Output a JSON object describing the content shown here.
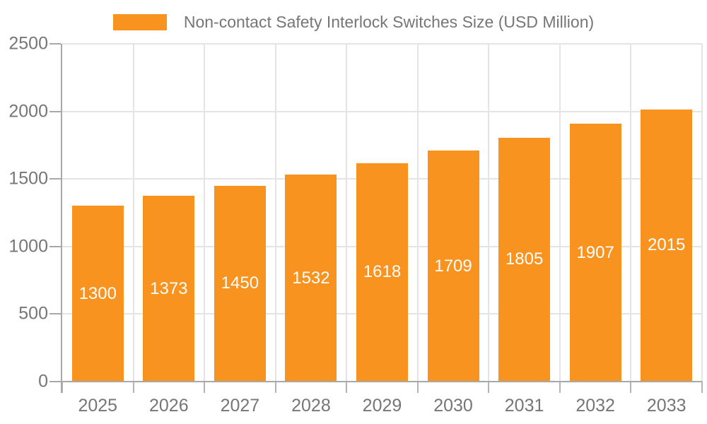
{
  "legend": {
    "label": "Non-contact Safety Interlock Switches Size (USD Million)"
  },
  "chart_data": {
    "type": "bar",
    "title": "Non-contact Safety Interlock Switches Size (USD Million)",
    "categories": [
      "2025",
      "2026",
      "2027",
      "2028",
      "2029",
      "2030",
      "2031",
      "2032",
      "2033"
    ],
    "values": [
      1300,
      1373,
      1450,
      1532,
      1618,
      1709,
      1805,
      1907,
      2015
    ],
    "xlabel": "",
    "ylabel": "",
    "ylim": [
      0,
      2500
    ],
    "yticks": [
      0,
      500,
      1000,
      1500,
      2000,
      2500
    ],
    "grid": true,
    "legend_position": "top",
    "value_labels": "inside-middle"
  },
  "colors": {
    "bar": "#F7931E",
    "grid": "#E4E4E4",
    "axis": "#A8A8A8",
    "text": "#767676",
    "value_label": "#FFFFFF",
    "background": "#FFFFFF"
  }
}
